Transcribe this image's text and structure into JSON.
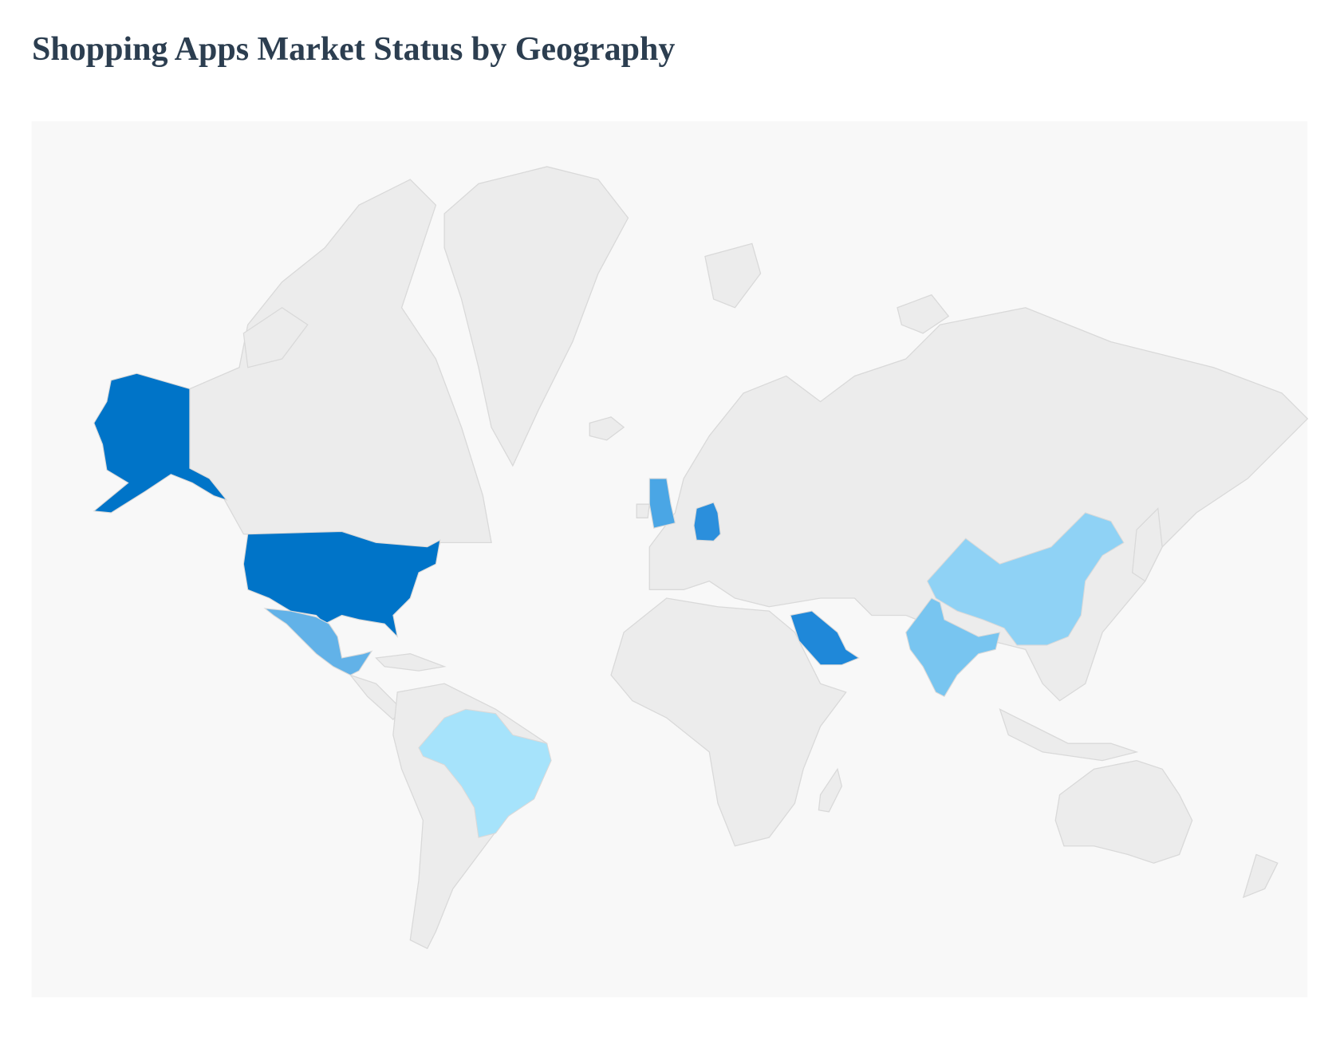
{
  "title": "Shopping Apps Market Status by Geography",
  "map": {
    "land_color": "#ececec",
    "border_color": "#d9d9d9",
    "background": "#f8f8f8",
    "regions": [
      {
        "color": "#0074c8"
      },
      {
        "color": "#0074c8"
      },
      {
        "color": "#62b2e8"
      },
      {
        "color": "#a6e3fb"
      },
      {
        "color": "#4aa6e5"
      },
      {
        "color": "#2b8fdc"
      },
      {
        "color": "#1f88d9"
      },
      {
        "color": "#78c5f0"
      },
      {
        "color": "#8fd2f5"
      }
    ]
  }
}
